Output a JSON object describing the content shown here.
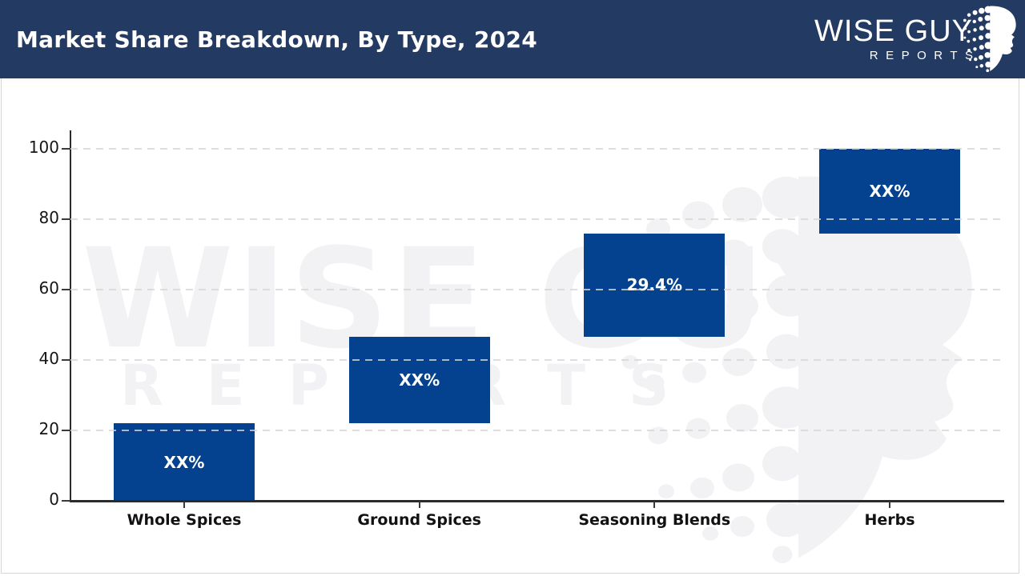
{
  "header": {
    "title": "Market Share Breakdown, By Type, 2024",
    "logo": {
      "line1": "WISE GUY",
      "line2": "REPORTS"
    }
  },
  "watermark": {
    "line1": "WISE GUY",
    "line2": "REPORTS"
  },
  "chart_data": {
    "type": "bar",
    "subtype": "waterfall",
    "title": "Market Share Breakdown, By Type, 2024",
    "categories": [
      "Whole Spices",
      "Ground Spices",
      "Seasoning Blends",
      "Herbs"
    ],
    "segments": [
      {
        "category": "Whole Spices",
        "start": 0,
        "end": 22,
        "label": "XX%"
      },
      {
        "category": "Ground Spices",
        "start": 22,
        "end": 46.6,
        "label": "XX%"
      },
      {
        "category": "Seasoning Blends",
        "start": 46.6,
        "end": 76,
        "label": "29.4%"
      },
      {
        "category": "Herbs",
        "start": 76,
        "end": 100,
        "label": "XX%"
      }
    ],
    "yticks": [
      0,
      20,
      40,
      60,
      80,
      100
    ],
    "ylim": [
      0,
      105
    ],
    "xlabel": "",
    "ylabel": "",
    "grid": "horizontal-dashed",
    "legend": "none",
    "bar_color": "#04418f",
    "bar_label_color": "#ffffff"
  }
}
